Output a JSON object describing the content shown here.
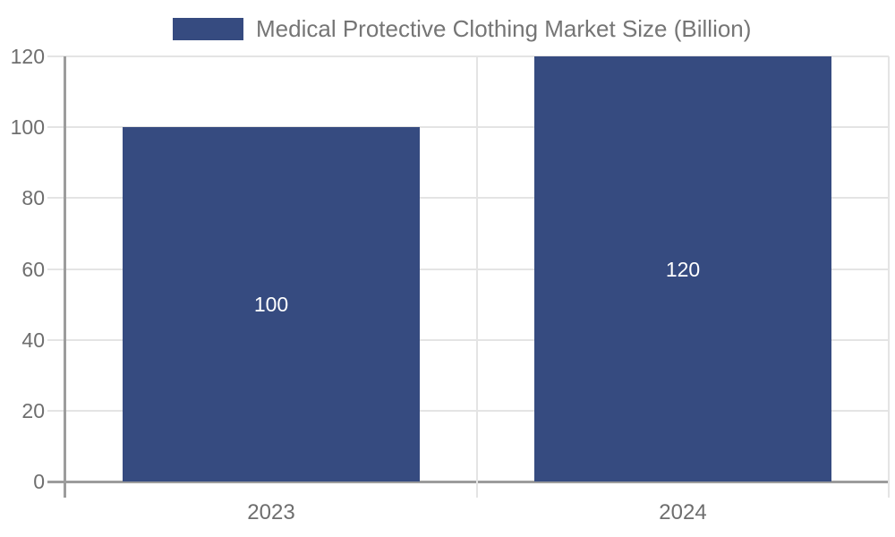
{
  "legend": {
    "label": "Medical Protective Clothing Market Size (Billion)"
  },
  "chart_data": {
    "type": "bar",
    "categories": [
      "2023",
      "2024"
    ],
    "series": [
      {
        "name": "Medical Protective Clothing Market Size (Billion)",
        "values": [
          100,
          120
        ]
      }
    ],
    "value_labels": [
      "100",
      "120"
    ],
    "title": "Medical Protective Clothing Market Size (Billion)",
    "xlabel": "",
    "ylabel": "",
    "ylim": [
      0,
      120
    ],
    "yticks": [
      0,
      20,
      40,
      60,
      80,
      100,
      120
    ],
    "grid": true,
    "legend_position": "top",
    "colors": {
      "bar": "#364b80",
      "axis": "#9c9c9c",
      "grid": "#e4e4e4",
      "tick_label": "#6e6e6e",
      "legend_text": "#757575",
      "value_label": "#ffffff",
      "background": "#ffffff"
    }
  }
}
